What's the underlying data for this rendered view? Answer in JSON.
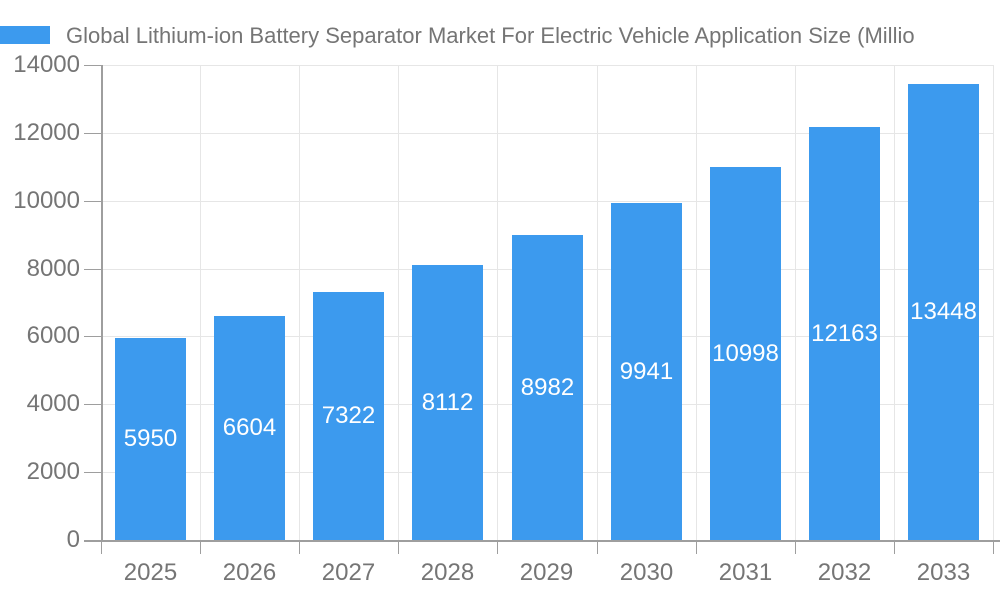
{
  "legend": {
    "swatch_color": "#3C9AEE",
    "position": "top-left"
  },
  "chart_data": {
    "type": "bar",
    "title": "Global Lithium-ion Battery Separator Market For Electric Vehicle Application Size (Millio",
    "categories": [
      "2025",
      "2026",
      "2027",
      "2028",
      "2029",
      "2030",
      "2031",
      "2032",
      "2033"
    ],
    "values": [
      5950,
      6604,
      7322,
      8112,
      8982,
      9941,
      10998,
      12163,
      13448
    ],
    "xlabel": "",
    "ylabel": "",
    "ylim": [
      0,
      14000
    ],
    "ytick_step": 2000,
    "yticks": [
      "0",
      "2000",
      "4000",
      "6000",
      "8000",
      "10000",
      "12000",
      "14000"
    ],
    "grid": true,
    "legend_position": "top-left",
    "colors": {
      "bar": "#3C9AEE",
      "grid": "#E6E6E6",
      "axis": "#9E9E9E",
      "text": "#757575",
      "value_label": "#FFFFFF",
      "background": "#FFFFFF"
    }
  }
}
